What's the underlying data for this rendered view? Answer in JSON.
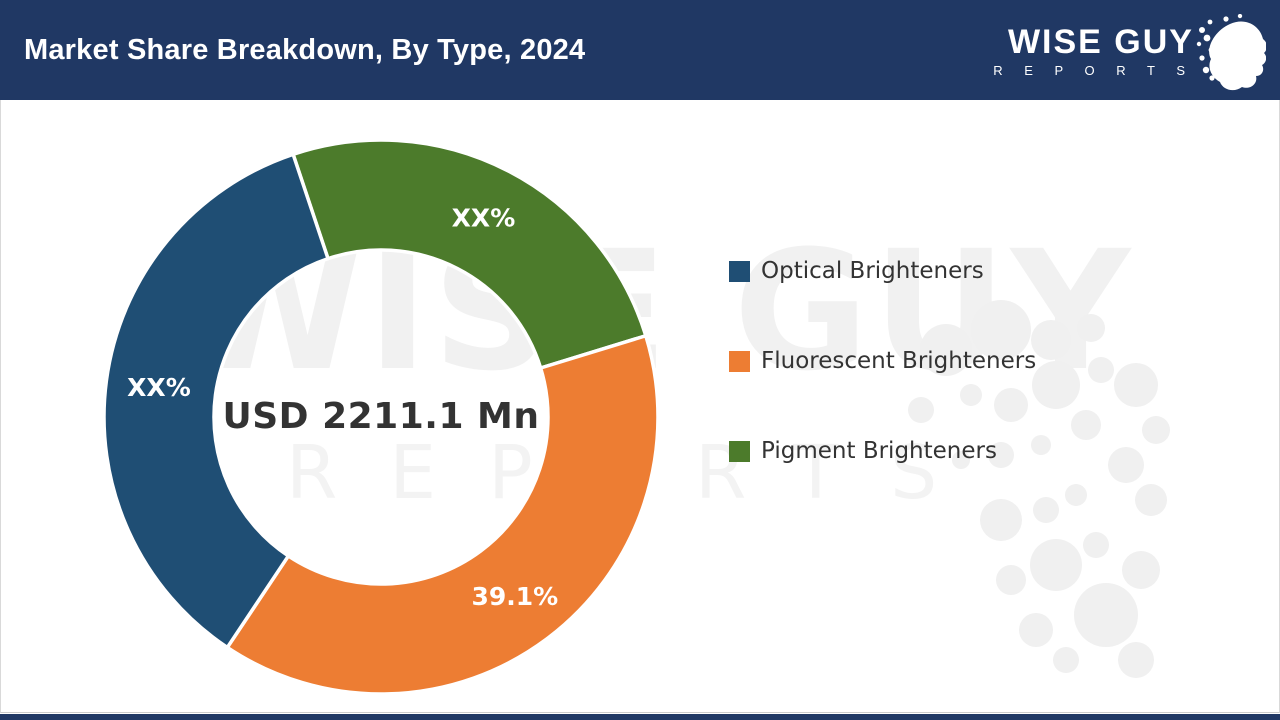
{
  "header": {
    "title": "Market Share Breakdown, By Type, 2024",
    "logo": {
      "line1": "WISE GUY",
      "line2": "R E P O R T S"
    }
  },
  "watermark": {
    "line1": "WISE GUY",
    "line2": "REPORTS"
  },
  "chart_data": {
    "type": "pie",
    "style": "donut",
    "title": "Market Share Breakdown, By Type, 2024",
    "center_label": "USD 2211.1 Mn",
    "units": "percent share of USD 2211.1 Mn",
    "legend_position": "right",
    "start_angle_clockwise_from_top_deg": -18.5,
    "segments": [
      {
        "name": "Pigment Brighteners",
        "value_pct": 25.4,
        "label": "XX%",
        "color": "#4C7B2B"
      },
      {
        "name": "Fluorescent Brighteners",
        "value_pct": 39.1,
        "label": "39.1%",
        "color": "#ED7D33"
      },
      {
        "name": "Optical Brighteners",
        "value_pct": 35.5,
        "label": "XX%",
        "color": "#1F4E74"
      }
    ]
  },
  "legend": {
    "items": [
      {
        "label": "Optical Brighteners",
        "color": "#1F4E74"
      },
      {
        "label": "Fluorescent Brighteners",
        "color": "#ED7D33"
      },
      {
        "label": "Pigment Brighteners",
        "color": "#4C7B2B"
      }
    ]
  },
  "colors": {
    "header_bg": "#203864",
    "footer_bg": "#203864",
    "text_dark": "#333333",
    "watermark": "#f1f1f1"
  }
}
